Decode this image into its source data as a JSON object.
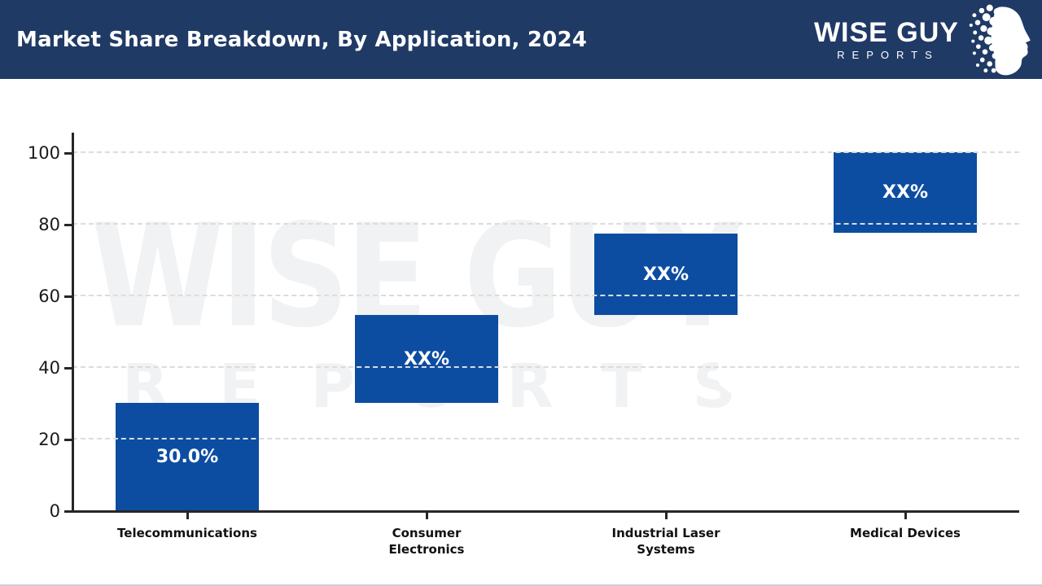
{
  "header": {
    "title": "Market Share Breakdown, By Application, 2024",
    "logo": {
      "brand": "WISE GUY",
      "sub": "REPORTS"
    }
  },
  "watermark": {
    "line1": "WISE GUY",
    "line2": "REPORTS"
  },
  "colors": {
    "header_bg": "#203A66",
    "header_text": "#FFFFFF",
    "bar_blue": "#0C4DA2",
    "bar_label": "#FFFFFF",
    "gridline": "#DCDCDC",
    "axis": "#262626",
    "watermark": "#F1F2F4",
    "bottom_rule": "#CFCFCF",
    "page_bg": "#FFFFFF"
  },
  "chart_data": {
    "type": "bar",
    "subtype": "waterfall-floating-bars",
    "title": "Market Share Breakdown, By Application, 2024",
    "categories": [
      "Telecommunications",
      "Consumer Electronics",
      "Industrial Laser Systems",
      "Medical Devices"
    ],
    "category_label_lines": [
      [
        "Telecommunications"
      ],
      [
        "Consumer",
        "Electronics"
      ],
      [
        "Industrial Laser",
        "Systems"
      ],
      [
        "Medical Devices"
      ]
    ],
    "segments": [
      {
        "category": "Telecommunications",
        "start": 0,
        "end": 30,
        "label": "30.0%"
      },
      {
        "category": "Consumer Electronics",
        "start": 30,
        "end": 54.5,
        "label": "XX%"
      },
      {
        "category": "Industrial Laser Systems",
        "start": 54.5,
        "end": 77.3,
        "label": "XX%"
      },
      {
        "category": "Medical Devices",
        "start": 77.5,
        "end": 100,
        "label": "XX%"
      }
    ],
    "ylim": [
      0,
      105
    ],
    "yticks": [
      0,
      20,
      40,
      60,
      80,
      100
    ],
    "xlabel": "",
    "ylabel": "",
    "grid": {
      "axis": "y",
      "style": "dashed",
      "drawn_over_bars": true
    },
    "legend": null
  }
}
